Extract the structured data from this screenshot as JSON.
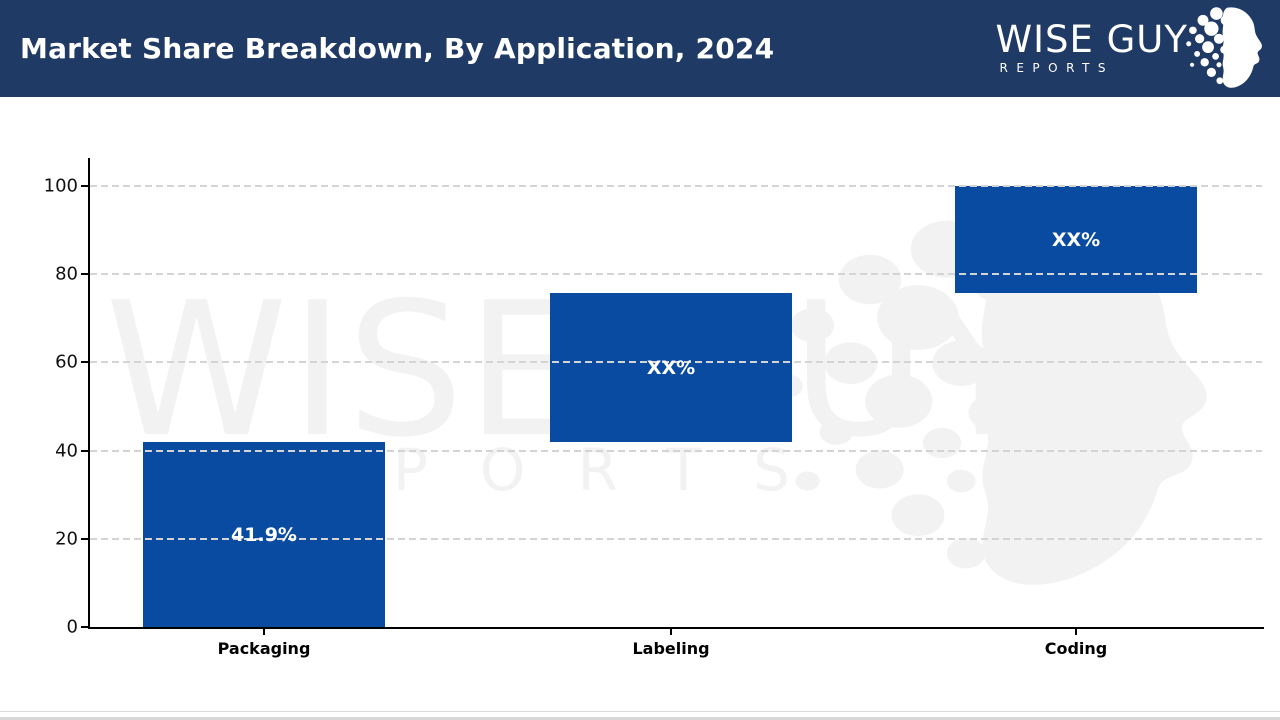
{
  "header": {
    "title": "Market Share Breakdown, By Application, 2024",
    "logo": {
      "line1": "WISE GUY",
      "line2": "REPORTS"
    }
  },
  "watermark": {
    "line1": "WISE GUY",
    "line2": "REPORTS"
  },
  "chart_data": {
    "type": "bar",
    "subtype": "waterfall",
    "title": "Market Share Breakdown, By Application, 2024",
    "categories": [
      "Packaging",
      "Labeling",
      "Coding"
    ],
    "segments": [
      {
        "category": "Packaging",
        "label": "41.9%",
        "start": 0,
        "end": 41.9
      },
      {
        "category": "Labeling",
        "label": "XX%",
        "start": 41.9,
        "end": 75.7
      },
      {
        "category": "Coding",
        "label": "XX%",
        "start": 75.7,
        "end": 100
      }
    ],
    "yticks": [
      0,
      20,
      40,
      60,
      80,
      100
    ],
    "ylim": [
      0,
      106
    ],
    "xlabel": "",
    "ylabel": "",
    "grid": "horizontal dashed, drawn above bars",
    "legend": "none",
    "bar_color": "#084ba0",
    "bar_label_color": "#ffffff",
    "grid_color": "#d4d4d4",
    "axis_color": "#000000"
  },
  "colors": {
    "header_bg": "#203a66",
    "watermark": "#f2f2f2",
    "background": "#ffffff"
  }
}
